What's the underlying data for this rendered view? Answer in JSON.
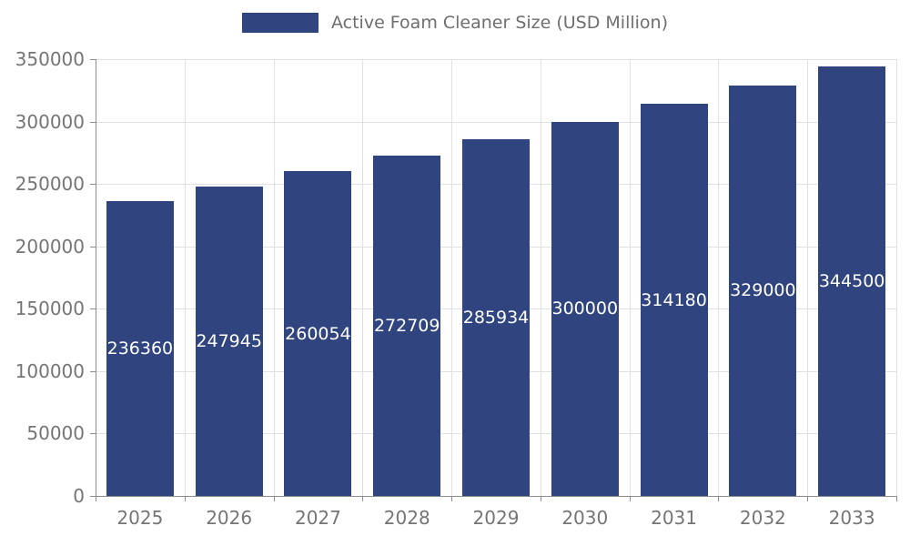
{
  "chart_data": {
    "type": "bar",
    "title": "Active Foam Cleaner Size (USD Million)",
    "categories": [
      "2025",
      "2026",
      "2027",
      "2028",
      "2029",
      "2030",
      "2031",
      "2032",
      "2033"
    ],
    "values": [
      236360,
      247945,
      260054,
      272709,
      285934,
      300000,
      314180,
      329000,
      344500
    ],
    "value_labels": [
      "236360",
      "247945",
      "260054",
      "272709",
      "285934",
      "300000",
      "314180",
      "329000",
      "344500"
    ],
    "xlabel": "",
    "ylabel": "",
    "ylim": [
      0,
      350000
    ],
    "yticks": [
      0,
      50000,
      100000,
      150000,
      200000,
      250000,
      300000,
      350000
    ],
    "ytick_labels": [
      "0",
      "50000",
      "100000",
      "150000",
      "200000",
      "250000",
      "300000",
      "350000"
    ],
    "grid": true,
    "legend_position": "top",
    "colors": {
      "bar": "#30457f",
      "value_label": "#ffffff",
      "axis": "#8c8c8c",
      "gridline": "#e0e0e0",
      "tick_text": "#757575",
      "legend_text": "#6e6e6e",
      "background": "#ffffff"
    }
  }
}
